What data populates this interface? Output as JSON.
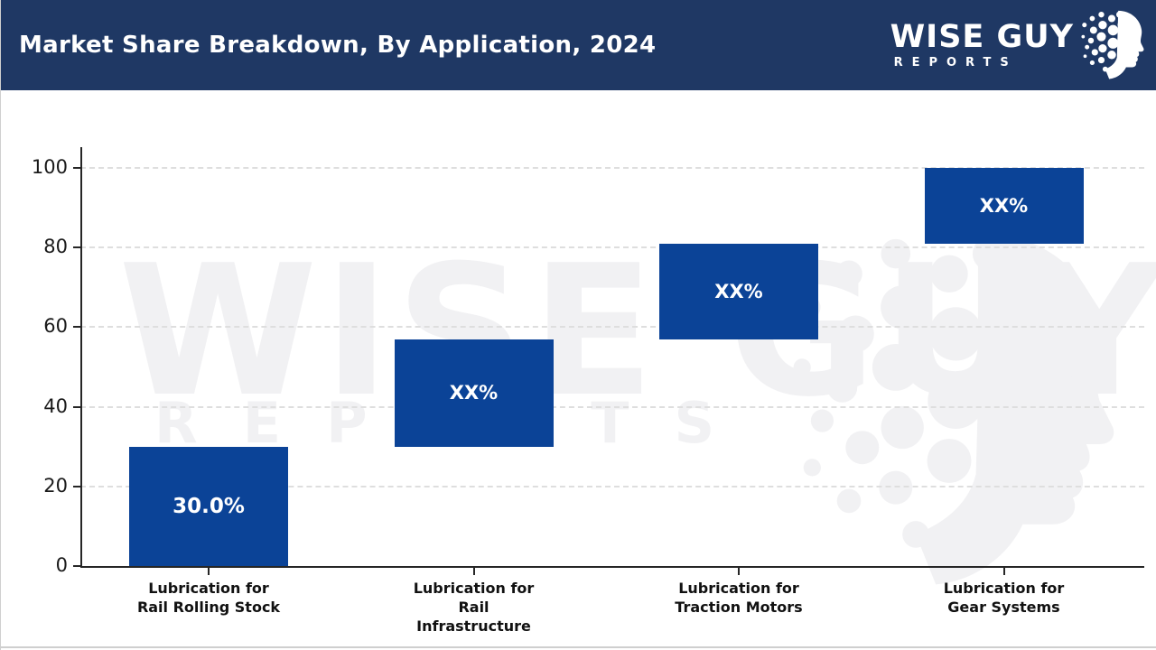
{
  "header": {
    "title": "Market Share Breakdown, By Application, 2024",
    "logo": {
      "line1": "WISE GUY",
      "line2": "REPORTS"
    }
  },
  "watermark": {
    "line1": "WISE GUY",
    "line2": "REPORTS"
  },
  "colors": {
    "header_bg": "#1f3864",
    "bar_blue": "#0b4397",
    "grid_gray": "#dedede",
    "watermark_gray": "#f1f1f3"
  },
  "chart_data": {
    "type": "bar",
    "subtype": "waterfall",
    "title": "Market Share Breakdown, By Application, 2024",
    "xlabel": "",
    "ylabel": "",
    "ylim": [
      0,
      105
    ],
    "yticks": [
      0,
      20,
      40,
      60,
      80,
      100
    ],
    "grid": "horizontal-dashed",
    "legend": "none",
    "bar_color": "#0b4397",
    "categories": [
      "Lubrication for Rail Rolling Stock",
      "Lubrication for Rail Infrastructure",
      "Lubrication for Traction Motors",
      "Lubrication for Gear Systems"
    ],
    "segments": [
      {
        "category_lines": [
          "Lubrication for",
          "Rail Rolling Stock"
        ],
        "start": 0,
        "end": 30,
        "label": "30.0%"
      },
      {
        "category_lines": [
          "Lubrication for",
          "Rail",
          "Infrastructure"
        ],
        "start": 30,
        "end": 57,
        "label": "XX%"
      },
      {
        "category_lines": [
          "Lubrication for",
          "Traction Motors"
        ],
        "start": 57,
        "end": 81,
        "label": "XX%"
      },
      {
        "category_lines": [
          "Lubrication for",
          "Gear Systems"
        ],
        "start": 81,
        "end": 100,
        "label": "XX%"
      }
    ]
  }
}
